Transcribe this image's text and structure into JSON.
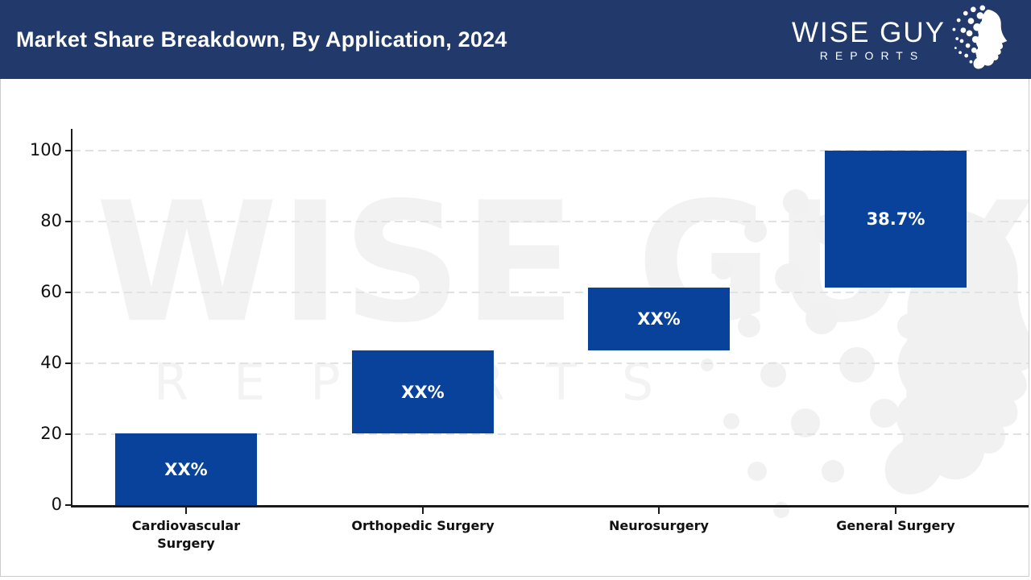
{
  "header": {
    "title": "Market Share Breakdown, By Application, 2024",
    "bg_color": "#21396b",
    "logo": {
      "line1": "WISE GUY",
      "line2": "REPORTS"
    }
  },
  "watermark": {
    "line1": "WISE GUY",
    "line2": "REPORTS"
  },
  "chart_data": {
    "type": "bar",
    "subtype": "floating-waterfall-segments",
    "title": "Market Share Breakdown, By Application, 2024",
    "categories": [
      "Cardiovascular Surgery",
      "Orthopedic Surgery",
      "Neurosurgery",
      "General Surgery"
    ],
    "bars": [
      {
        "category_label": "Cardiovascular\nSurgery",
        "start": 0,
        "end": 20.2,
        "value_label": "XX%"
      },
      {
        "category_label": "Orthopedic Surgery",
        "start": 20.2,
        "end": 43.6,
        "value_label": "XX%"
      },
      {
        "category_label": "Neurosurgery",
        "start": 43.6,
        "end": 61.3,
        "value_label": "XX%"
      },
      {
        "category_label": "General Surgery",
        "start": 61.3,
        "end": 100,
        "value_label": "38.7%"
      }
    ],
    "yticks": [
      0,
      20,
      40,
      60,
      80,
      100
    ],
    "ylim": [
      0,
      106
    ],
    "xlabel": "",
    "ylabel": "",
    "grid": "dashed-horizontal",
    "legend": "none",
    "bar_color": "#08429b",
    "value_label_color": "#ffffff",
    "axis_color": "#1a1a1a",
    "gridline_color": "#e2e2e2"
  }
}
